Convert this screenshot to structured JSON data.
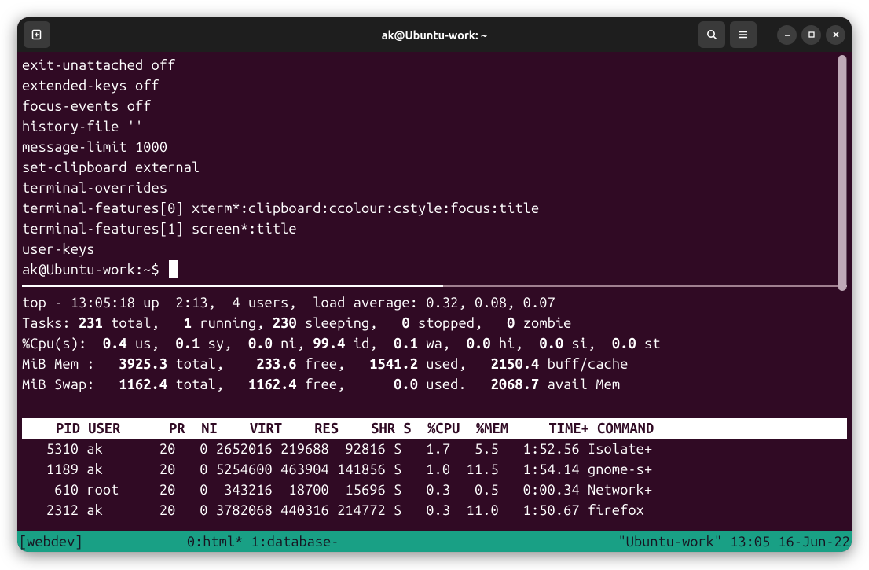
{
  "window": {
    "title": "ak@Ubuntu-work: ~"
  },
  "titlebar": {
    "newtab_icon": "new-tab-icon",
    "search_icon": "search-icon",
    "menu_icon": "hamburger-icon",
    "minimize_icon": "minimize-icon",
    "maximize_icon": "maximize-icon",
    "close_icon": "close-icon"
  },
  "colors": {
    "window_bg": "#300a24",
    "titlebar_bg": "#1e1e1e",
    "text": "#ffffff",
    "tmux_bg": "#19a085",
    "tmux_fg": "#171421",
    "header_bg": "#ffffff",
    "header_fg": "#300a24"
  },
  "pane_top": {
    "lines": [
      "exit-unattached off",
      "extended-keys off",
      "focus-events off",
      "history-file ''",
      "message-limit 1000",
      "set-clipboard external",
      "terminal-overrides",
      "terminal-features[0] xterm*:clipboard:ccolour:cstyle:focus:title",
      "terminal-features[1] screen*:title",
      "user-keys"
    ],
    "prompt": "ak@Ubuntu-work:~$ "
  },
  "top": {
    "line1": "top - 13:05:18 up  2:13,  4 users,  load average: 0.32, 0.08, 0.07",
    "tasks": {
      "total": "231",
      "running": "1",
      "sleeping": "230",
      "stopped": "0",
      "zombie": "0"
    },
    "cpu": {
      "us": "0.4",
      "sy": "0.1",
      "ni": "0.0",
      "id": "99.4",
      "wa": "0.1",
      "hi": "0.0",
      "si": "0.0",
      "st": "0.0"
    },
    "mem": {
      "total": "3925.3",
      "free": "233.6",
      "used": "1541.2",
      "buff": "2150.4"
    },
    "swap": {
      "total": "1162.4",
      "free": "1162.4",
      "used": "0.0",
      "avail": "2068.7"
    },
    "header": "    PID USER      PR  NI    VIRT    RES    SHR S  %CPU  %MEM     TIME+ COMMAND ",
    "rows": [
      {
        "pid": "5310",
        "user": "ak  ",
        "pr": "20",
        "ni": "0",
        "virt": "2652016",
        "res": "219688",
        "shr": " 92816",
        "s": "S",
        "cpu": "1.7",
        "mem": " 5.5",
        "time": "1:52.56",
        "cmd": "Isolate+"
      },
      {
        "pid": "1189",
        "user": "ak  ",
        "pr": "20",
        "ni": "0",
        "virt": "5254600",
        "res": "463904",
        "shr": "141856",
        "s": "S",
        "cpu": "1.0",
        "mem": "11.5",
        "time": "1:54.14",
        "cmd": "gnome-s+"
      },
      {
        "pid": " 610",
        "user": "root",
        "pr": "20",
        "ni": "0",
        "virt": " 343216",
        "res": " 18700",
        "shr": " 15696",
        "s": "S",
        "cpu": "0.3",
        "mem": " 0.5",
        "time": "0:00.34",
        "cmd": "Network+"
      },
      {
        "pid": "2312",
        "user": "ak  ",
        "pr": "20",
        "ni": "0",
        "virt": "3782068",
        "res": "440316",
        "shr": "214772",
        "s": "S",
        "cpu": "0.3",
        "mem": "11.0",
        "time": "1:50.67",
        "cmd": "firefox"
      }
    ]
  },
  "tmux": {
    "session": "[webdev]",
    "windows": "0:html* 1:database-",
    "right": "\"Ubuntu-work\" 13:05 16-Jun-22"
  }
}
